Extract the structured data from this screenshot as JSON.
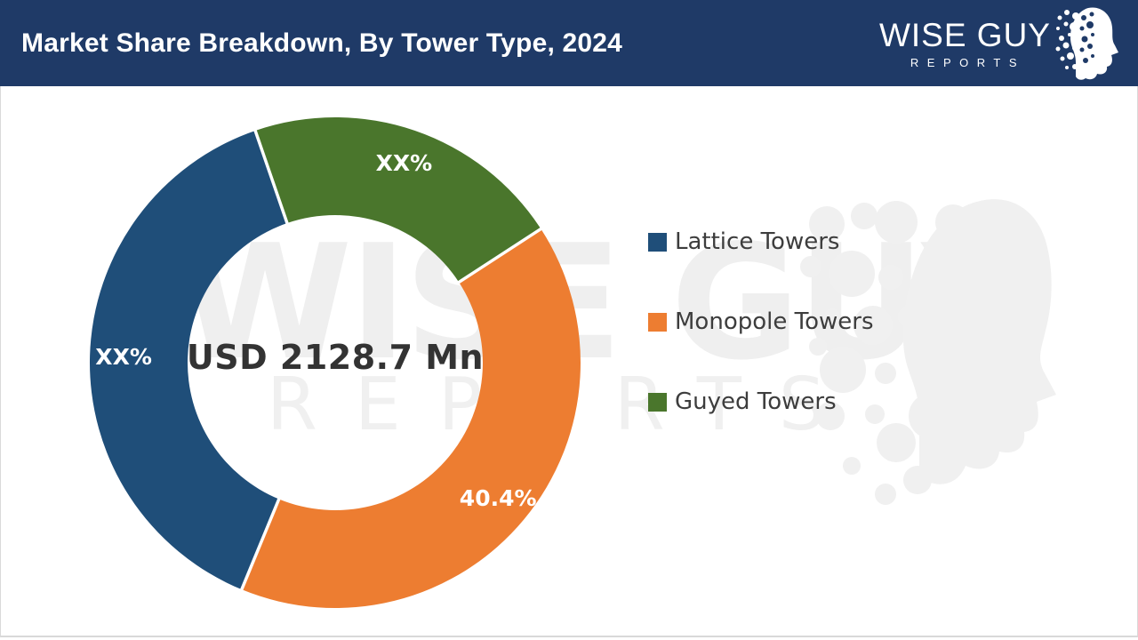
{
  "header": {
    "title": "Market Share Breakdown, By Tower Type, 2024",
    "bg_color": "#1f3a67",
    "logo_line1": "WISE GUY",
    "logo_line2": "REPORTS"
  },
  "watermark": {
    "line1": "WISE GUY",
    "line2": "REPORTS"
  },
  "chart_data": {
    "type": "pie",
    "subtype": "donut",
    "title": "Market Share Breakdown, By Tower Type, 2024",
    "center_label": "USD 2128.7 Mn",
    "start_angle_deg": 109,
    "direction": "clockwise",
    "legend_position": "right",
    "slices": [
      {
        "label": "Guyed Towers",
        "display_value": "XX%",
        "value_pct": 21.1,
        "color": "#4a762c"
      },
      {
        "label": "Monopole Towers",
        "display_value": "40.4%",
        "value_pct": 40.4,
        "color": "#ed7d31"
      },
      {
        "label": "Lattice Towers",
        "display_value": "XX%",
        "value_pct": 38.5,
        "color": "#1f4e79"
      }
    ]
  },
  "legend": {
    "items": [
      {
        "label": "Lattice Towers",
        "color": "#1f4e79"
      },
      {
        "label": "Monopole Towers",
        "color": "#ed7d31"
      },
      {
        "label": "Guyed Towers",
        "color": "#4a762c"
      }
    ]
  }
}
